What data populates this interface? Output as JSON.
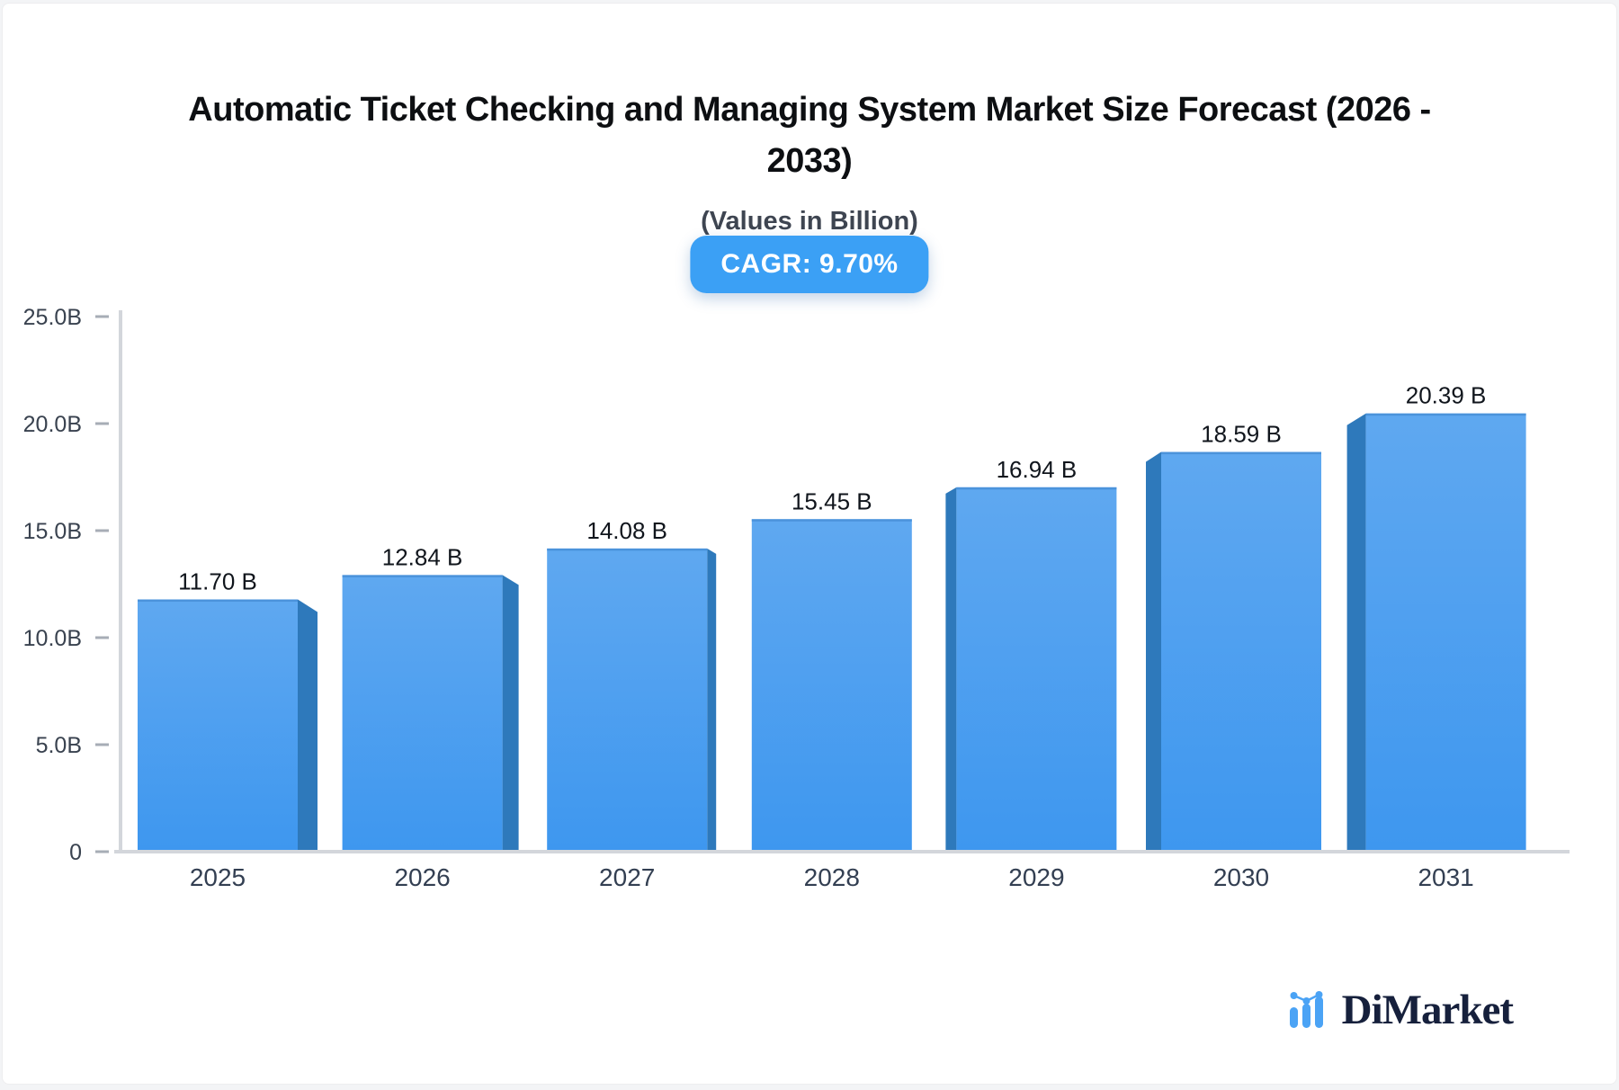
{
  "header": {
    "title_lines": [
      "Automatic Ticket Checking and Managing System Market Size Forecast (2026 -",
      "2033)"
    ],
    "subtitle": "(Values in Billion)",
    "cagr_badge": "CAGR: 9.70%"
  },
  "chart_data": {
    "type": "bar",
    "title": "Automatic Ticket Checking and Managing System Market Size Forecast (2026 - 2033)",
    "subtitle": "(Values in Billion)",
    "cagr": "9.70%",
    "categories": [
      "2025",
      "2026",
      "2027",
      "2028",
      "2029",
      "2030",
      "2031"
    ],
    "values": [
      11.7,
      12.84,
      14.08,
      15.45,
      16.94,
      18.59,
      20.39
    ],
    "value_labels": [
      "11.70 B",
      "12.84 B",
      "14.08 B",
      "15.45 B",
      "16.94 B",
      "18.59 B",
      "20.39 B"
    ],
    "ylim": [
      0,
      25
    ],
    "ytick_values": [
      0,
      5,
      10,
      15,
      20,
      25
    ],
    "ytick_labels": [
      "0",
      "5.0B",
      "10.0B",
      "15.0B",
      "20.0B",
      "25.0B"
    ],
    "xlabel": "",
    "ylabel": "",
    "grid": false,
    "legend": "none",
    "bar_style_3d": true,
    "colors": {
      "bar_face_top": "#5FA8F0",
      "bar_face_bottom": "#3E97EF",
      "bar_side": "#2E79BB",
      "bar_top_edge": "#4B93DB",
      "badge_bg": "#3BA0F5",
      "badge_text": "#FFFFFF",
      "axis_line": "#D3D6DB",
      "tick_mark": "#A7ADB6",
      "tick_label": "#39424F",
      "category_label": "#333F52",
      "value_label": "#10151C",
      "title": "#0D0F12",
      "subtitle": "#3E4551",
      "brand_text": "#16203C",
      "brand_icon": "#4BA3F5"
    }
  },
  "footer": {
    "brand": "DiMarket"
  }
}
